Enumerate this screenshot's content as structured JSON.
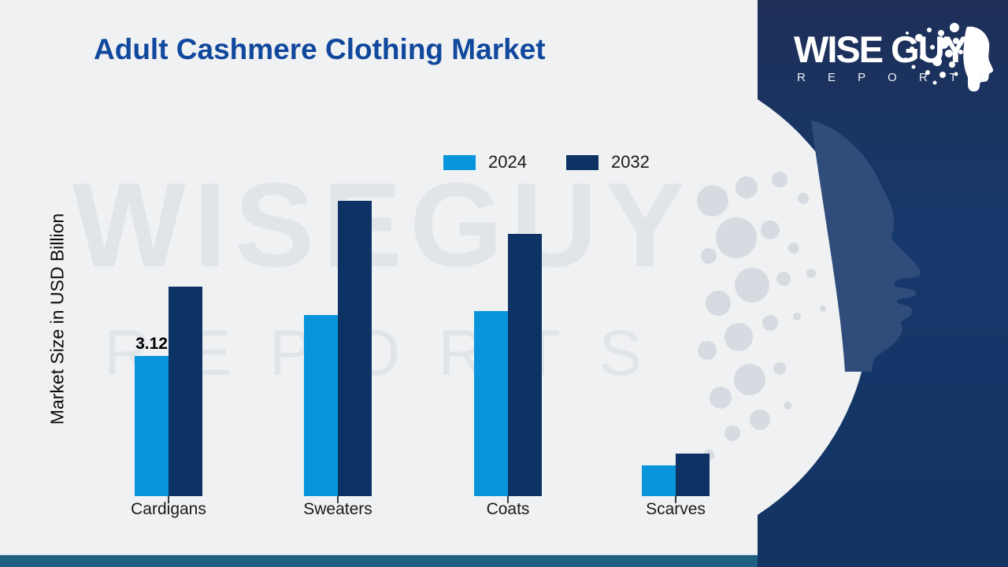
{
  "header": {
    "title": "Adult Cashmere Clothing Market"
  },
  "brand": {
    "name": "WISE GUY",
    "sub": "R E P O R T S"
  },
  "watermark": {
    "line1": "WISEGUY",
    "line2": "REPORTS"
  },
  "legend": [
    {
      "label": "2024",
      "color": "#0895DC"
    },
    {
      "label": "2032",
      "color": "#0D3264"
    }
  ],
  "colors": {
    "background": "#F0F1F2",
    "title_blue": "#10489D",
    "bar_2024": "#0895DC",
    "bar_2032": "#0D3264",
    "panel_navy": "#17386B",
    "face_silhouette": "#2F4C7B",
    "bottom_bar_teal": "#1E5F82",
    "watermark_gray": "#E1E4E9",
    "dot_gray": "#D7DAE0"
  },
  "chart_data": {
    "type": "bar",
    "title": "Adult Cashmere Clothing Market",
    "xlabel": "",
    "ylabel": "Market Size in USD Billion",
    "categories": [
      "Cardigans",
      "Sweaters",
      "Coats",
      "Scarves"
    ],
    "series": [
      {
        "name": "2024",
        "color": "#0895DC",
        "values": [
          3.12,
          4.03,
          4.12,
          0.68
        ],
        "data_labels": [
          "3.12",
          null,
          null,
          null
        ]
      },
      {
        "name": "2032",
        "color": "#0D3264",
        "values": [
          4.66,
          6.57,
          5.84,
          0.95
        ],
        "data_labels": [
          null,
          null,
          null,
          null
        ]
      }
    ],
    "ylim": [
      0,
      7
    ],
    "grid": false,
    "axis_line": false,
    "legend_position": "top-center",
    "visible_value_labels": [
      "3.12"
    ]
  }
}
